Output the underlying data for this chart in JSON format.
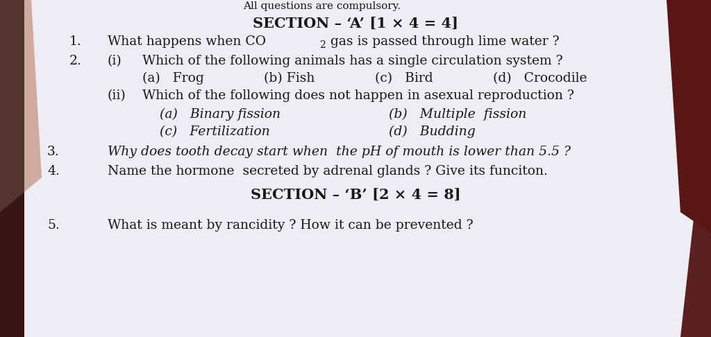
{
  "bg_color": "#5a2020",
  "page_color": "#eeedf5",
  "text_color": "#1a1814",
  "top_text": "All questions are compulsory.",
  "section_a_title": "SECTION – ‘A’ [1 × 4 = 4]",
  "section_b_title": "SECTION – ‘B’ [2 × 4 = 8]",
  "q1_before": "What happens when CO",
  "q1_sub": "2",
  "q1_after": " gas is passed through lime water ?",
  "q2i_label": "(i)",
  "q2i_text": "Which of the following animals has a single circulation system ?",
  "q2i_opt_a": "(a)   Frog",
  "q2i_opt_b": "(b) Fish",
  "q2i_opt_c": "(c)   Bird",
  "q2i_opt_d": "(d)   Crocodile",
  "q2ii_label": "(ii)",
  "q2ii_text": "Which of the following does not happen in asexual reproduction ?",
  "q2ii_opt_a": "(a)   Binary fission",
  "q2ii_opt_b": "(b)   Multiple  fission",
  "q2ii_opt_c": "(c)   Fertilization",
  "q2ii_opt_d": "(d)   Budding",
  "q3": "Why does tooth decay start when  the pH of mouth is lower than 5.5 ?",
  "q4": "Name the hormone  secreted by adrenal glands ? Give its funciton.",
  "q5": "What is meant by rancidity ? How it can be prevented ?"
}
